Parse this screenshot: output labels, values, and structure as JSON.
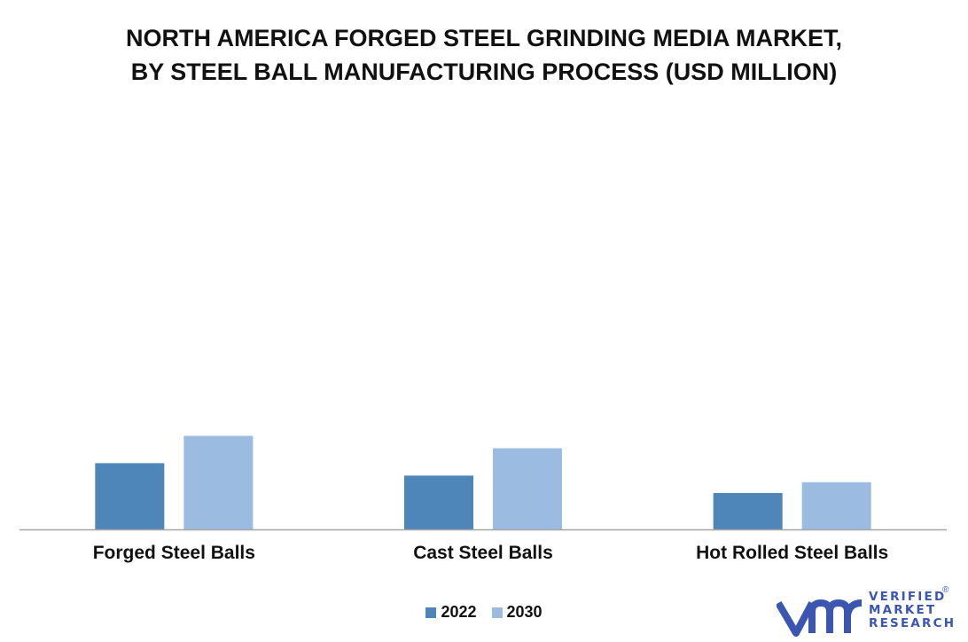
{
  "title": {
    "line1": "NORTH AMERICA FORGED STEEL GRINDING MEDIA MARKET,",
    "line2": "BY STEEL BALL MANUFACTURING PROCESS (USD MILLION)"
  },
  "chart_data": {
    "type": "bar",
    "title": "NORTH AMERICA FORGED STEEL GRINDING MEDIA MARKET, BY STEEL BALL MANUFACTURING PROCESS (USD MILLION)",
    "categories": [
      "Forged Steel Balls",
      "Cast Steel Balls",
      "Hot Rolled Steel Balls"
    ],
    "series": [
      {
        "name": "2022",
        "values": [
          80,
          65,
          44
        ],
        "color": "#4f86ba"
      },
      {
        "name": "2030",
        "values": [
          113,
          98,
          57
        ],
        "color": "#9bbbe0"
      }
    ],
    "xlabel": "",
    "ylabel": "",
    "ylim": [
      0,
      600
    ],
    "grid": false,
    "legend_position": "bottom-center"
  },
  "logo": {
    "lines": [
      "VERIFIED",
      "MARKET",
      "RESEARCH"
    ],
    "registered": "®",
    "color": "#3a56b0"
  }
}
